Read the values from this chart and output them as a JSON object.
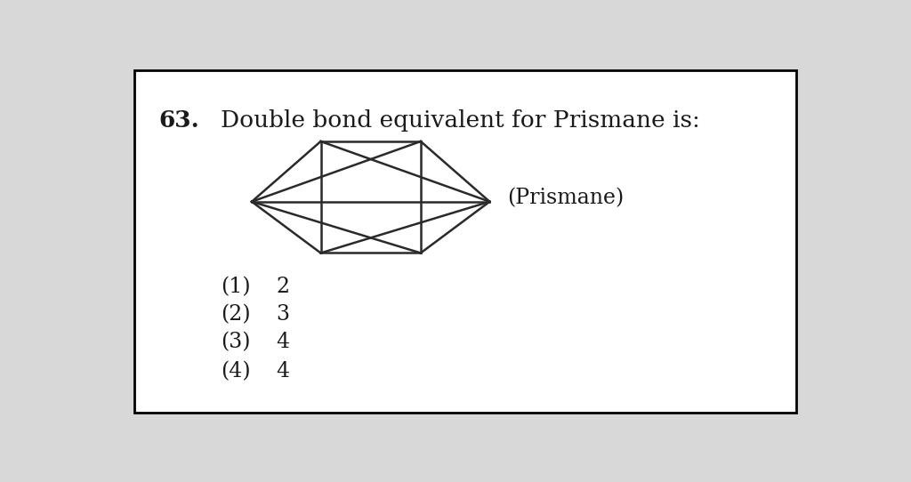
{
  "background_color": "#e8e8e8",
  "border_color": "#000000",
  "title_number": "63.",
  "title_text": "Double bond equivalent for Prismane is:",
  "prismane_label": "(Prismane)",
  "options_num": [
    "(1)",
    "(2)",
    "(3)",
    "(4)"
  ],
  "options_val": [
    "2",
    "3",
    "4",
    "4"
  ],
  "fig_bg": "#d8d8d8",
  "text_color": "#1a1a1a",
  "line_color": "#2a2a2a",
  "prism_color": "#2a2a2a",
  "box_bg": "#ffffff",
  "font_size_title": 19,
  "font_size_options": 17,
  "font_size_label": 17
}
